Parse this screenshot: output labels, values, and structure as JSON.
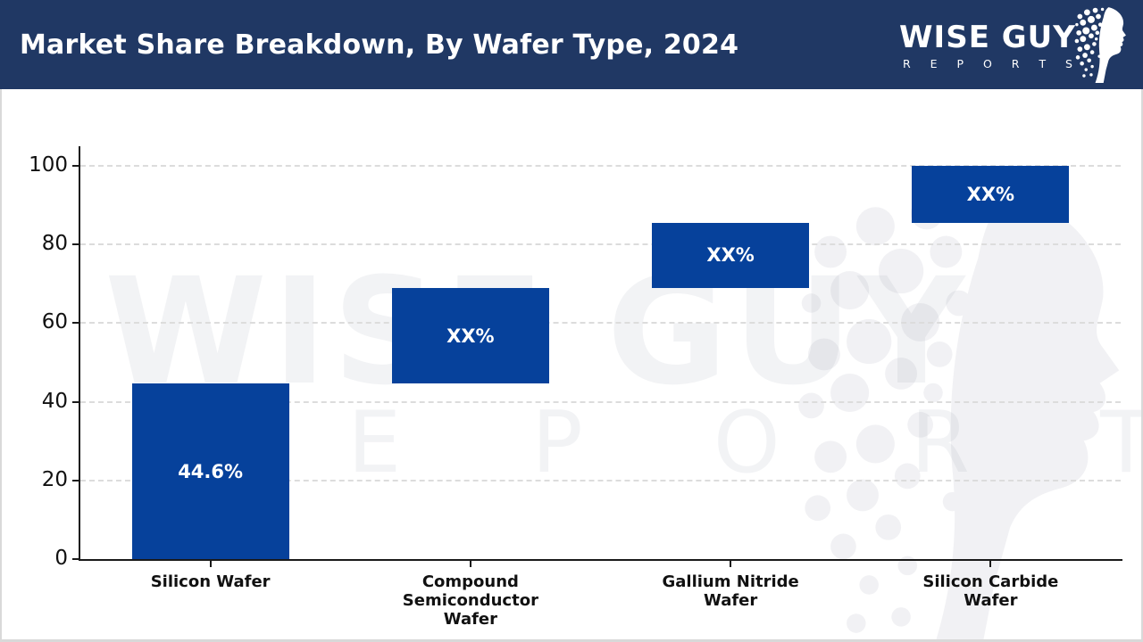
{
  "header": {
    "title": "Market Share Breakdown, By Wafer Type, 2024",
    "logo": {
      "line1": "WISE GUY",
      "line2": "R E P O R T S"
    }
  },
  "watermark": {
    "line1": "WISE GUY",
    "line2": "R E P O R T S"
  },
  "colors": {
    "header_bg": "#203864",
    "header_text": "#ffffff",
    "bar": "#06419B",
    "bar_label": "#ffffff",
    "grid": "#dcdcdc",
    "axis": "#1a1a1a",
    "frame": "#d9d9d9"
  },
  "chart_data": {
    "type": "bar",
    "subtype": "waterfall",
    "title": "Market Share Breakdown, By Wafer Type, 2024",
    "categories": [
      "Silicon Wafer",
      "Compound Semiconductor Wafer",
      "Gallium Nitride Wafer",
      "Silicon Carbide Wafer"
    ],
    "category_label_lines": [
      [
        "Silicon Wafer"
      ],
      [
        "Compound",
        "Semiconductor",
        "Wafer"
      ],
      [
        "Gallium Nitride",
        "Wafer"
      ],
      [
        "Silicon Carbide",
        "Wafer"
      ]
    ],
    "segments": [
      {
        "category": "Silicon Wafer",
        "start": 0,
        "end": 44.6,
        "label": "44.6%"
      },
      {
        "category": "Compound Semiconductor Wafer",
        "start": 44.6,
        "end": 69,
        "label": "XX%"
      },
      {
        "category": "Gallium Nitride Wafer",
        "start": 69,
        "end": 85.5,
        "label": "XX%"
      },
      {
        "category": "Silicon Carbide Wafer",
        "start": 85.5,
        "end": 100,
        "label": "XX%"
      }
    ],
    "ylim": [
      0,
      100
    ],
    "yticks": [
      0,
      20,
      40,
      60,
      80,
      100
    ],
    "grid": "horizontal-dashed",
    "legend": "none",
    "xlabel": "",
    "ylabel": ""
  }
}
